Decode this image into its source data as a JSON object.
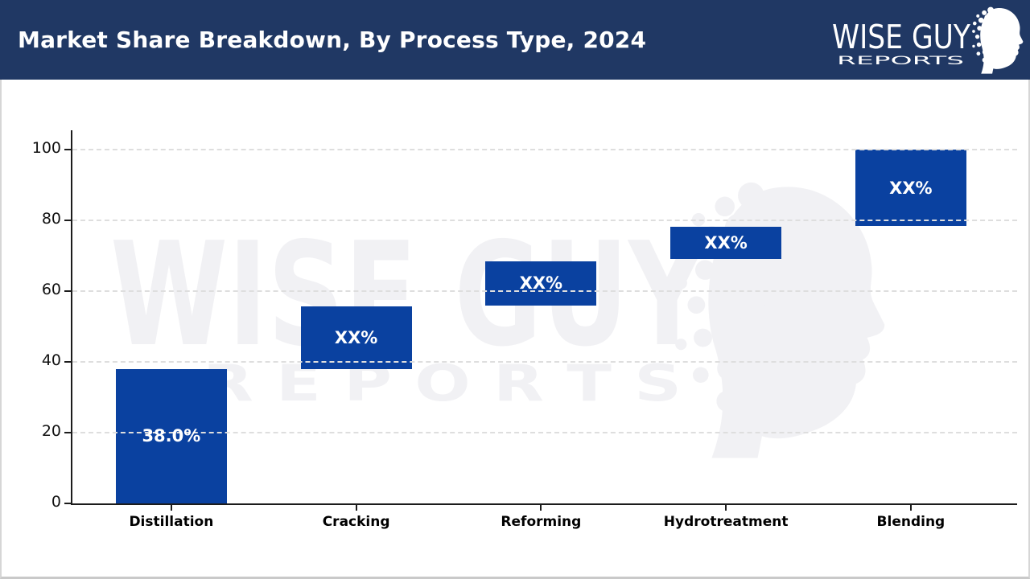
{
  "header": {
    "title": "Market Share Breakdown, By Process Type, 2024",
    "logo": {
      "line1": "WISE GUY",
      "line2": "R E P O R T S"
    }
  },
  "watermark": {
    "line1": "WISE GUY",
    "line2": "R E P O R T S"
  },
  "chart_data": {
    "type": "bar",
    "subtype": "waterfall",
    "title": "Market Share Breakdown, By Process Type, 2024",
    "categories": [
      "Distillation",
      "Cracking",
      "Reforming",
      "Hydrotreatment",
      "Blending"
    ],
    "bars": [
      {
        "category": "Distillation",
        "label": "38.0%",
        "start": 0,
        "end": 38
      },
      {
        "category": "Cracking",
        "label": "XX%",
        "start": 38,
        "end": 55.7
      },
      {
        "category": "Reforming",
        "label": "XX%",
        "start": 56,
        "end": 68.4
      },
      {
        "category": "Hydrotreatment",
        "label": "XX%",
        "start": 69,
        "end": 78.2
      },
      {
        "category": "Blending",
        "label": "XX%",
        "start": 78.4,
        "end": 100
      }
    ],
    "xlabel": "",
    "ylabel": "",
    "yticks": [
      0,
      20,
      40,
      60,
      80,
      100
    ],
    "ylim": [
      0,
      105.5
    ],
    "grid": {
      "horizontal": true,
      "style": "dashed"
    },
    "legend": "none",
    "colors": {
      "bar": "#0a41a0",
      "bar_label": "#ffffff",
      "header_bg": "#203864",
      "grid_line": "#dedede",
      "axis": "#1c1c1c"
    }
  }
}
